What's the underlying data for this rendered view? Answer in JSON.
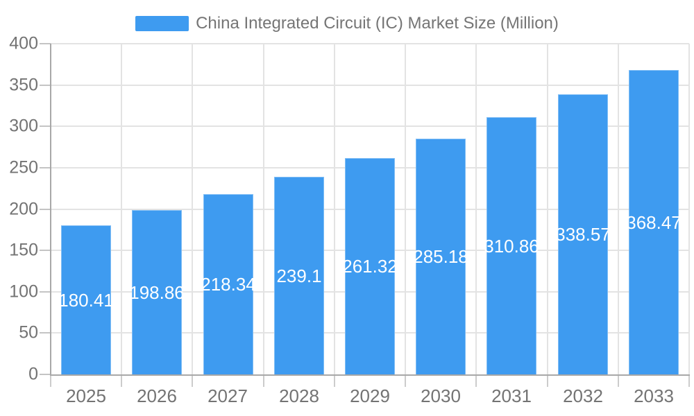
{
  "legend": {
    "label": "China Integrated Circuit (IC) Market Size (Million)"
  },
  "chart_data": {
    "type": "bar",
    "title": "China Integrated Circuit (IC) Market Size (Million)",
    "categories": [
      "2025",
      "2026",
      "2027",
      "2028",
      "2029",
      "2030",
      "2031",
      "2032",
      "2033"
    ],
    "series": [
      {
        "name": "China Integrated Circuit (IC) Market Size (Million)",
        "values": [
          180.41,
          198.86,
          218.34,
          239.1,
          261.32,
          285.18,
          310.86,
          338.57,
          368.47
        ]
      }
    ],
    "value_labels": [
      "180.41",
      "198.86",
      "218.34",
      "239.1",
      "261.32",
      "285.18",
      "310.86",
      "338.57",
      "368.47"
    ],
    "xlabel": "",
    "ylabel": "",
    "ylim": [
      0,
      400
    ],
    "yticks": [
      0,
      50,
      100,
      150,
      200,
      250,
      300,
      350,
      400
    ],
    "grid": true,
    "legend_position": "top",
    "bar_color": "#3E9BF0",
    "value_label_color": "#ffffff",
    "axis_label_color": "#737373"
  }
}
